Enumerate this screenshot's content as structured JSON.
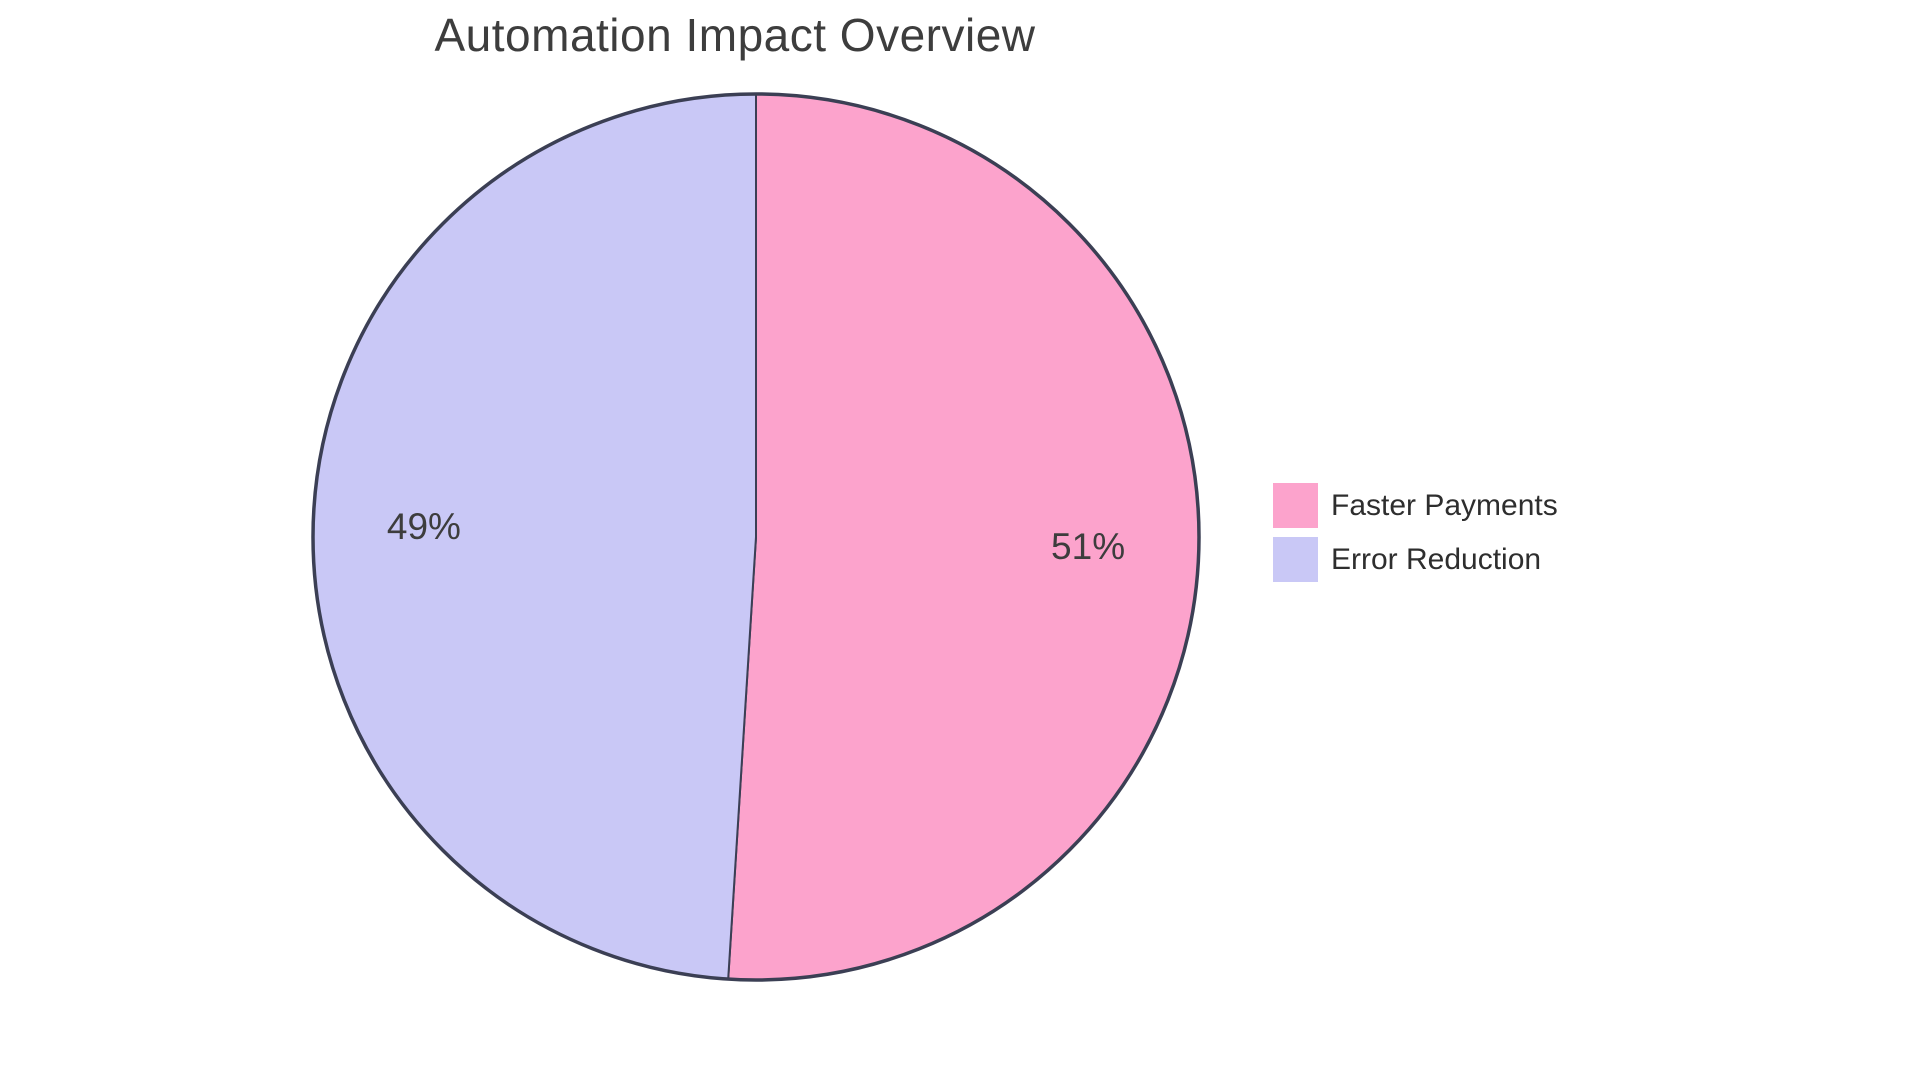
{
  "page": {
    "background_color": "#ffffff"
  },
  "chart_data": {
    "type": "pie",
    "title": "Automation Impact Overview",
    "slices": [
      {
        "label": "Faster Payments",
        "value": 51,
        "percent_label": "51%",
        "color": "#FCA3CC"
      },
      {
        "label": "Error Reduction",
        "value": 49,
        "percent_label": "49%",
        "color": "#C9C8F6"
      }
    ],
    "start_angle_deg": -90,
    "direction": "clockwise",
    "legend_position": "right",
    "border_color": "#3B3F54",
    "title_color": "#3D3D3D",
    "label_color": "#3D3D3D",
    "legend_text_color": "#2E2E2E"
  }
}
